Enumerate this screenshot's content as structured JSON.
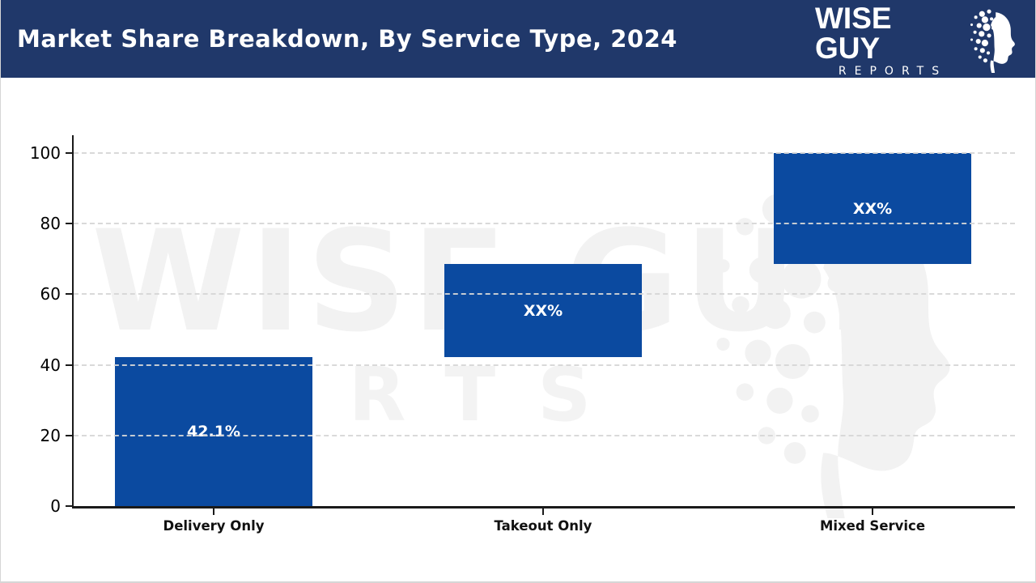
{
  "header": {
    "title": "Market Share Breakdown, By Service Type, 2024",
    "bg_color": "#20386a",
    "logo": {
      "line1": "WISE GUY",
      "line2": "REPORTS"
    }
  },
  "watermark": {
    "line1": "WISE GUY",
    "line2": "PORTS"
  },
  "chart_data": {
    "type": "bar",
    "subtype": "waterfall-stacked-percent",
    "title": "Market Share Breakdown, By Service Type, 2024",
    "categories": [
      "Delivery Only",
      "Takeout Only",
      "Mixed Service"
    ],
    "segments": [
      {
        "category": "Delivery Only",
        "start": 0,
        "end": 42.1,
        "value": 42.1,
        "label": "42.1%"
      },
      {
        "category": "Takeout Only",
        "start": 42.1,
        "end": 68.5,
        "value": 26.4,
        "label": "XX%"
      },
      {
        "category": "Mixed Service",
        "start": 68.5,
        "end": 100,
        "value": 31.5,
        "label": "XX%"
      }
    ],
    "ylim": [
      0,
      100
    ],
    "yticks": [
      0,
      20,
      40,
      60,
      80,
      100
    ],
    "xlabel": "",
    "ylabel": "",
    "grid": "horizontal-dashed",
    "legend": "none",
    "bar_color": "#0b4aa0",
    "bar_label_color": "#ffffff",
    "grid_color": "#d6d6d6",
    "axis_color": "#1a1a1a"
  }
}
